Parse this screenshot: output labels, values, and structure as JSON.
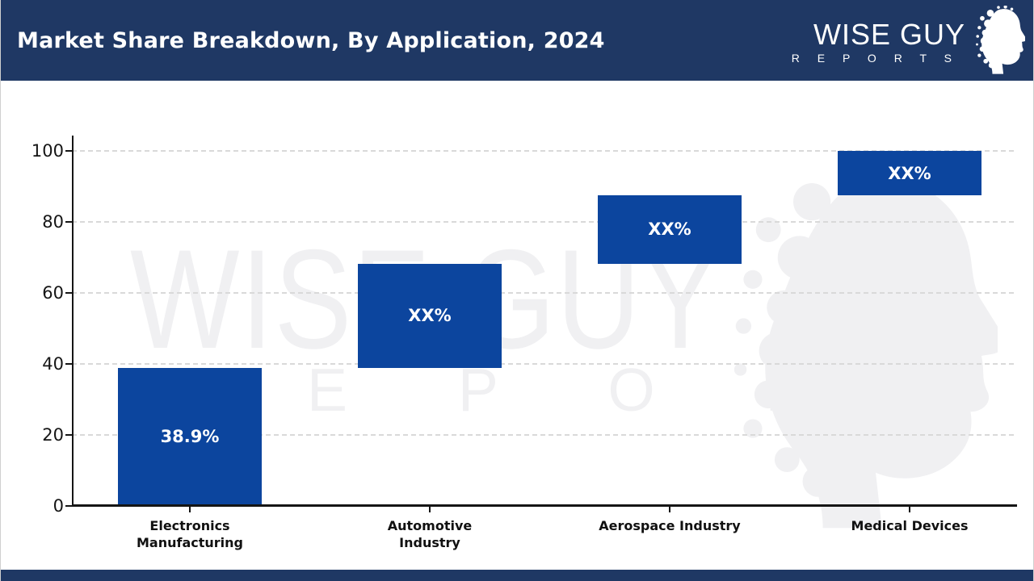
{
  "header": {
    "title": "Market Share Breakdown, By Application, 2024",
    "bg_color": "#1f3864",
    "text_color": "#ffffff",
    "logo": {
      "line1": "WISE GUY",
      "line2": "R E P O R T S"
    }
  },
  "watermark": {
    "line1": "WISE GUY",
    "line2": "R E P O R T S",
    "color": "#f0f0f2"
  },
  "footer": {
    "bg_color": "#1f3864"
  },
  "chart_data": {
    "type": "bar",
    "subtype": "waterfall",
    "title": "Market Share Breakdown, By Application, 2024",
    "xlabel": "",
    "ylabel": "",
    "categories": [
      "Electronics Manufacturing",
      "Automotive Industry",
      "Aerospace Industry",
      "Medical Devices"
    ],
    "category_label_lines": [
      [
        "Electronics",
        "Manufacturing"
      ],
      [
        "Automotive",
        "Industry"
      ],
      [
        "Aerospace Industry"
      ],
      [
        "Medical Devices"
      ]
    ],
    "segments": [
      {
        "category": "Electronics Manufacturing",
        "start": 0,
        "end": 38.9,
        "label": "38.9%"
      },
      {
        "category": "Automotive Industry",
        "start": 38.9,
        "end": 68.2,
        "label": "XX%"
      },
      {
        "category": "Aerospace Industry",
        "start": 68.2,
        "end": 87.5,
        "label": "XX%"
      },
      {
        "category": "Medical Devices",
        "start": 87.5,
        "end": 100,
        "label": "XX%"
      }
    ],
    "ylim": [
      0,
      100
    ],
    "yticks": [
      0,
      20,
      40,
      60,
      80,
      100
    ],
    "ytick_labels": [
      "0",
      "20",
      "40",
      "60",
      "80",
      "100"
    ],
    "grid": "horizontal-dashed",
    "legend_position": "none",
    "bar_color": "#0c459e",
    "bar_label_color": "#ffffff",
    "axis_color": "#151515",
    "grid_color": "#d9d9d9"
  }
}
